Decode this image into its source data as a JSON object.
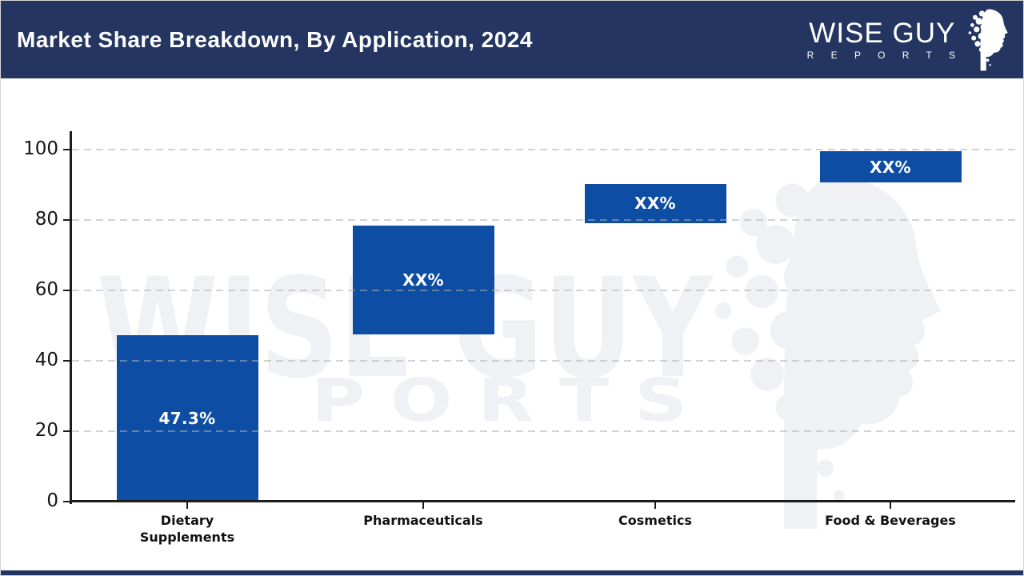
{
  "header": {
    "title": "Market Share Breakdown, By Application, 2024",
    "logo": {
      "wordmark": "WISE GUY",
      "subtext": "R E P O R T S"
    }
  },
  "watermark": {
    "line1": "WISE GUY",
    "line2": "P O R T S"
  },
  "chart_data": {
    "type": "bar",
    "subtype": "floating-segment-waterfall",
    "title": "Market Share Breakdown, By Application, 2024",
    "categories": [
      "Dietary\nSupplements",
      "Pharmaceuticals",
      "Cosmetics",
      "Food & Beverages"
    ],
    "series": [
      {
        "segments": [
          {
            "category": "Dietary Supplements",
            "start": 0,
            "end": 47.3,
            "label": "47.3%"
          },
          {
            "category": "Pharmaceuticals",
            "start": 47.4,
            "end": 78.5,
            "label": "XX%"
          },
          {
            "category": "Cosmetics",
            "start": 79.2,
            "end": 90.2,
            "label": "XX%"
          },
          {
            "category": "Food & Beverages",
            "start": 90.7,
            "end": 99.5,
            "label": "XX%"
          }
        ]
      }
    ],
    "xlabel": "",
    "ylabel": "",
    "ylim": [
      0,
      100
    ],
    "yticks": [
      0,
      20,
      40,
      60,
      80,
      100
    ],
    "grid": "horizontal-dashed",
    "legend": "none"
  },
  "colors": {
    "header_bg": "#233560",
    "footer_bg": "#233560",
    "bar": "#0d4da3",
    "bar_label": "#ffffff",
    "gridline": "#b9b9b9",
    "axis": "#1c1c1c",
    "watermark": "#f0f1f4",
    "background": "#ffffff"
  }
}
